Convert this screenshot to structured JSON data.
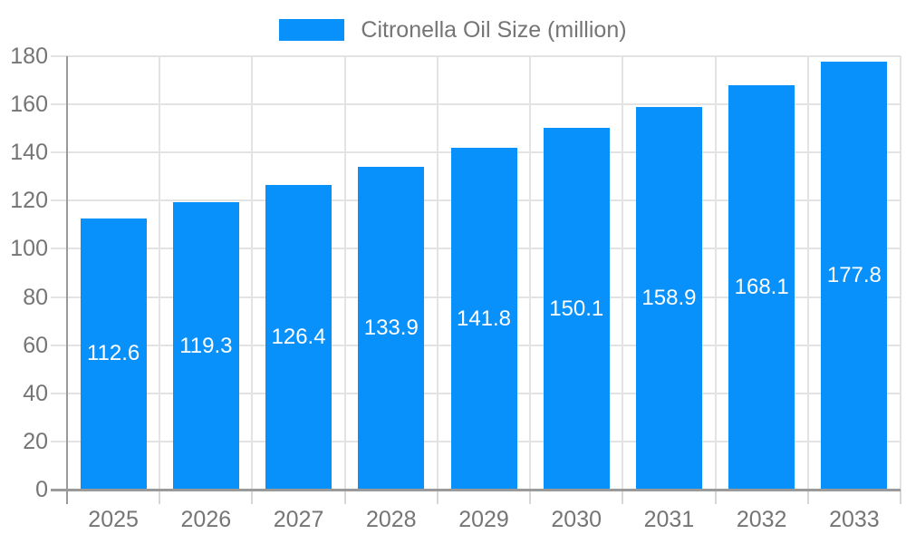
{
  "chart_data": {
    "type": "bar",
    "title": "Citronella Oil Size (million)",
    "legend": {
      "label": "Citronella Oil Size (million)",
      "position": "top-center"
    },
    "categories": [
      "2025",
      "2026",
      "2027",
      "2028",
      "2029",
      "2030",
      "2031",
      "2032",
      "2033"
    ],
    "series": [
      {
        "name": "Citronella Oil Size (million)",
        "values": [
          112.6,
          119.3,
          126.4,
          133.9,
          141.8,
          150.1,
          158.9,
          168.1,
          177.8
        ]
      }
    ],
    "bar_value_labels": [
      "112.6",
      "119.3",
      "126.4",
      "133.9",
      "141.8",
      "150.1",
      "158.9",
      "168.1",
      "177.8"
    ],
    "ylabel": "",
    "xlabel": "",
    "ylim": [
      0,
      180
    ],
    "yticks": [
      0,
      20,
      40,
      60,
      80,
      100,
      120,
      140,
      160,
      180
    ],
    "grid": true,
    "colors": {
      "bar": "#0991fb",
      "bar_label_text": "#ffffff",
      "axis_line": "#9a9a9a",
      "gridline": "#e3e3e3",
      "tick": "#d6d6d6",
      "axis_text": "#757575"
    }
  }
}
